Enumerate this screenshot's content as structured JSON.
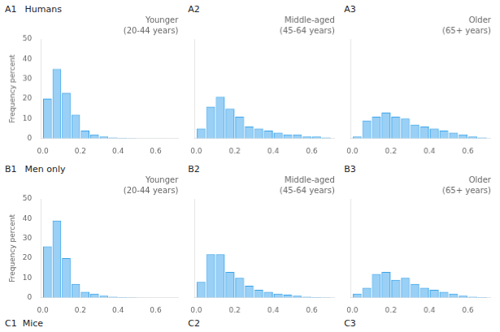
{
  "chart_data": [
    {
      "type": "bar",
      "title": "Younger",
      "subtitle": "(20-44 years)",
      "annotations": [
        "A1",
        "Humans"
      ],
      "ylabel": "Frequency percent",
      "bins": [
        0.0,
        0.05,
        0.1,
        0.15,
        0.2,
        0.25,
        0.3,
        0.35,
        0.4,
        0.45,
        0.5,
        0.55,
        0.6,
        0.65,
        0.7
      ],
      "values": [
        20,
        35,
        23,
        12,
        4,
        2,
        1,
        0.5,
        0.3,
        0.2,
        0.1,
        0.1,
        0.1,
        0
      ],
      "xlim": [
        -0.01,
        0.72
      ],
      "xticks": [
        {
          "value": 0.0,
          "label": "0.0"
        },
        0.2,
        0.4,
        0.6
      ],
      "ylim": [
        0,
        50
      ],
      "yticks": [
        0,
        10,
        20,
        30,
        40,
        50
      ],
      "grid": false
    },
    {
      "type": "bar",
      "title": "Middle-aged",
      "subtitle": "(45-64 years)",
      "annotations": [
        "A2"
      ],
      "bins": [
        0.0,
        0.05,
        0.1,
        0.15,
        0.2,
        0.25,
        0.3,
        0.35,
        0.4,
        0.45,
        0.5,
        0.55,
        0.6,
        0.65,
        0.7
      ],
      "values": [
        5,
        16,
        21,
        15,
        11,
        6,
        5,
        4,
        3,
        2,
        2,
        1,
        1,
        0.5
      ],
      "xlim": [
        -0.01,
        0.72
      ],
      "xticks": [
        {
          "value": 0.0,
          "label": "0.0"
        },
        0.2,
        0.4,
        0.6
      ],
      "ylim": [
        0,
        50
      ],
      "yticks": [
        0,
        10,
        20,
        30,
        40,
        50
      ],
      "grid": false,
      "tick_labels": "x"
    },
    {
      "type": "bar",
      "title": "Older",
      "subtitle": "(65+ years)",
      "annotations": [
        "A3"
      ],
      "bins": [
        0.0,
        0.05,
        0.1,
        0.15,
        0.2,
        0.25,
        0.3,
        0.35,
        0.4,
        0.45,
        0.5,
        0.55,
        0.6,
        0.65,
        0.7
      ],
      "values": [
        1,
        9,
        11,
        13,
        11,
        10,
        7,
        6,
        5,
        4,
        3,
        2,
        1,
        0.5
      ],
      "xlim": [
        -0.01,
        0.72
      ],
      "xticks": [
        {
          "value": 0.0,
          "label": "0.0"
        },
        0.2,
        0.4,
        0.6
      ],
      "ylim": [
        0,
        50
      ],
      "yticks": [
        0,
        10,
        20,
        30,
        40,
        50
      ],
      "grid": false,
      "tick_labels": "x"
    },
    {
      "type": "bar",
      "title": "Younger",
      "subtitle": "(20-44 years)",
      "annotations": [
        "B1",
        "Men only"
      ],
      "ylabel": "Frequency percent",
      "bins": [
        0.0,
        0.05,
        0.1,
        0.15,
        0.2,
        0.25,
        0.3,
        0.35,
        0.4,
        0.45,
        0.5,
        0.55,
        0.6,
        0.65,
        0.7
      ],
      "values": [
        26,
        39,
        20,
        7,
        3,
        2,
        1,
        0.5,
        0.3,
        0.2,
        0.1,
        0,
        0,
        0
      ],
      "xlim": [
        -0.01,
        0.72
      ],
      "xticks": [
        {
          "value": 0.0,
          "label": "0.0"
        },
        0.2,
        0.4,
        0.6
      ],
      "ylim": [
        0,
        50
      ],
      "yticks": [
        0,
        10,
        20,
        30,
        40,
        50
      ],
      "grid": false
    },
    {
      "type": "bar",
      "title": "Middle-aged",
      "subtitle": "(45-64 years)",
      "annotations": [
        "B2"
      ],
      "bins": [
        0.0,
        0.05,
        0.1,
        0.15,
        0.2,
        0.25,
        0.3,
        0.35,
        0.4,
        0.45,
        0.5,
        0.55,
        0.6,
        0.65,
        0.7
      ],
      "values": [
        8,
        22,
        22,
        13,
        10,
        6,
        4,
        3,
        2,
        1.5,
        1,
        0.5,
        0.3,
        0.2
      ],
      "xlim": [
        -0.01,
        0.72
      ],
      "xticks": [
        {
          "value": 0.0,
          "label": "0.0"
        },
        0.2,
        0.4,
        0.6
      ],
      "ylim": [
        0,
        50
      ],
      "yticks": [
        0,
        10,
        20,
        30,
        40,
        50
      ],
      "grid": false,
      "tick_labels": "x"
    },
    {
      "type": "bar",
      "title": "Older",
      "subtitle": "(65+ years)",
      "annotations": [
        "B3"
      ],
      "bins": [
        0.0,
        0.05,
        0.1,
        0.15,
        0.2,
        0.25,
        0.3,
        0.35,
        0.4,
        0.45,
        0.5,
        0.55,
        0.6,
        0.65,
        0.7
      ],
      "values": [
        2,
        5,
        12,
        13,
        9,
        10,
        7,
        5,
        4,
        3,
        2,
        1,
        0.5,
        0.3
      ],
      "xlim": [
        -0.01,
        0.72
      ],
      "xticks": [
        {
          "value": 0.0,
          "label": "0.0"
        },
        0.2,
        0.4,
        0.6
      ],
      "ylim": [
        0,
        50
      ],
      "yticks": [
        0,
        10,
        20,
        30,
        40,
        50
      ],
      "grid": false,
      "tick_labels": "x"
    }
  ],
  "annotations": [
    "C1  Mice",
    "C2",
    "C3"
  ]
}
